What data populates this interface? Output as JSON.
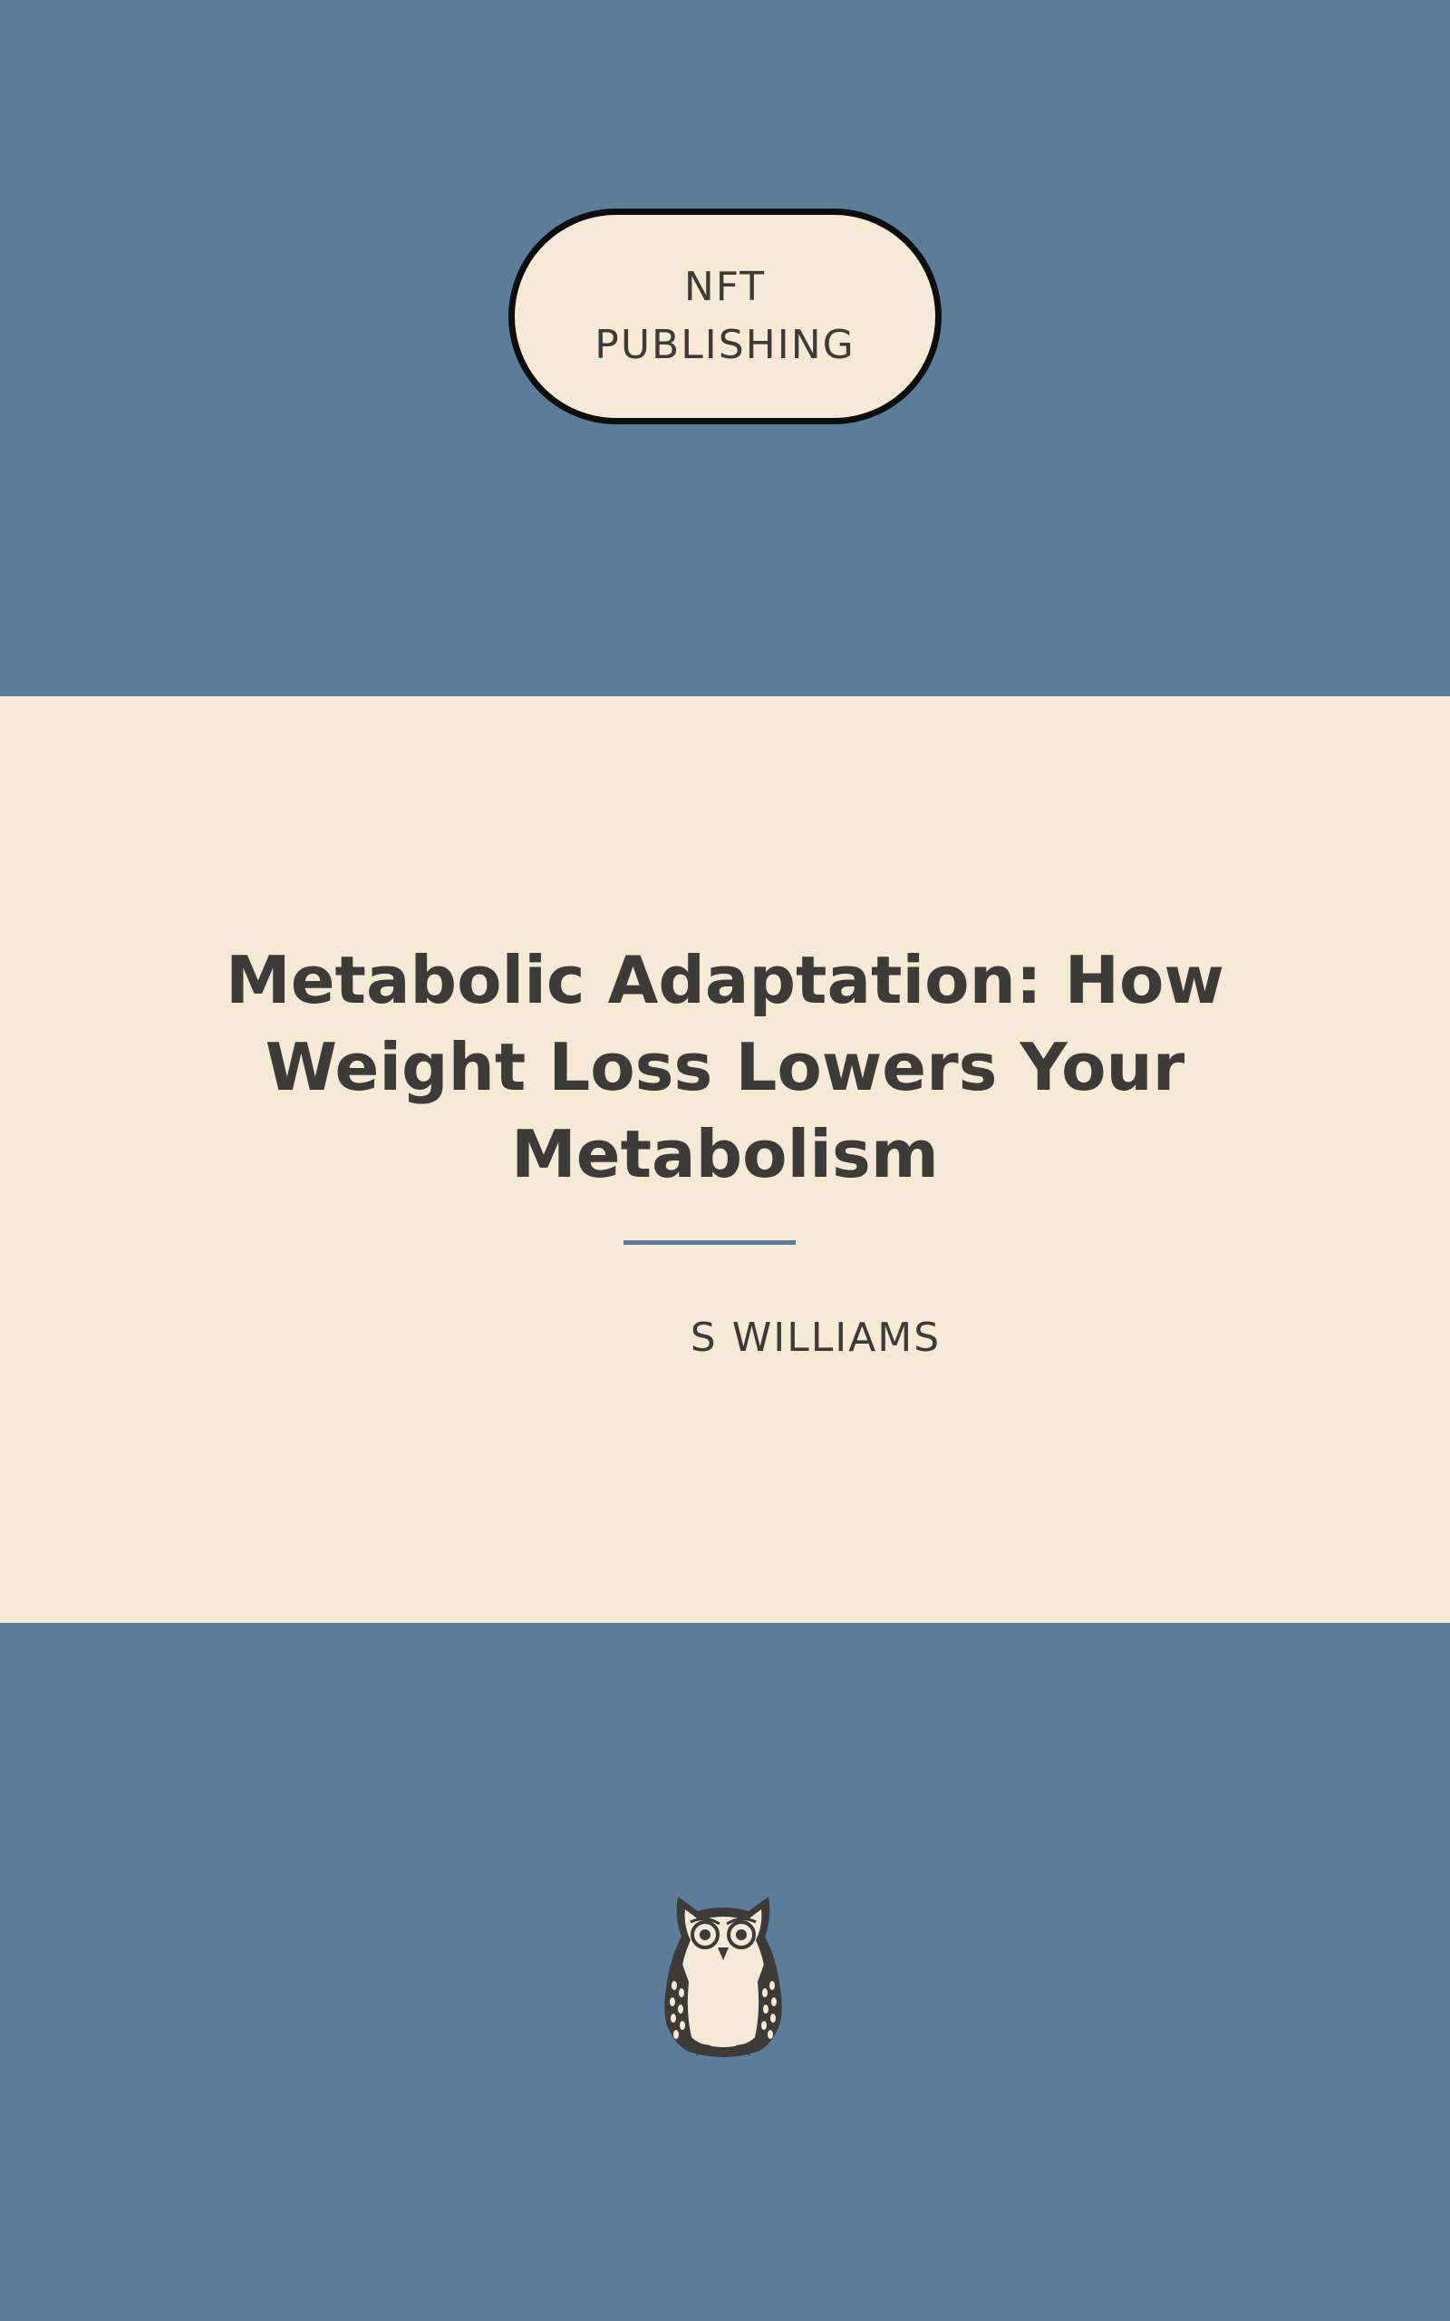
{
  "publisher": {
    "line1": "NFT",
    "line2": "PUBLISHING"
  },
  "book": {
    "title": "Metabolic Adaptation: How Weight Loss Lowers Your Metabolism",
    "author": "S WILLIAMS"
  },
  "logo": {
    "icon": "owl-icon"
  },
  "colors": {
    "background_blue": "#5b7d99",
    "band_cream": "#f6ead6",
    "text_dark": "#3d3a37",
    "pill_border": "#0d0d0d"
  }
}
